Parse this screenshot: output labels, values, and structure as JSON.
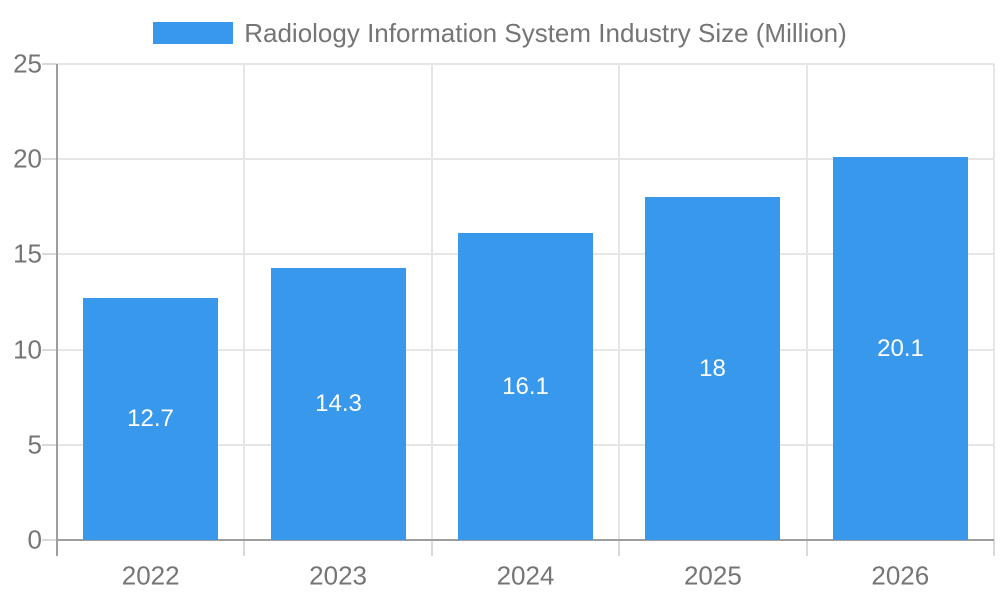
{
  "chart_data": {
    "type": "bar",
    "legend": "Radiology Information System Industry Size (Million)",
    "categories": [
      "2022",
      "2023",
      "2024",
      "2025",
      "2026"
    ],
    "values": [
      12.7,
      14.3,
      16.1,
      18,
      20.1
    ],
    "value_labels": [
      "12.7",
      "14.3",
      "16.1",
      "18",
      "20.1"
    ],
    "title": "",
    "xlabel": "",
    "ylabel": "",
    "ylim": [
      0,
      25
    ],
    "yticks": [
      0,
      5,
      10,
      15,
      20,
      25
    ],
    "grid": true,
    "legend_position": "top-center",
    "colors": {
      "bar": "#3898EC",
      "axis_text": "#757575",
      "bar_label": "#FFFFFF",
      "gridline": "#E6E6E6",
      "axis_line": "#9E9E9E",
      "tick": "#D9D9D9",
      "background": "#FFFFFF"
    }
  }
}
